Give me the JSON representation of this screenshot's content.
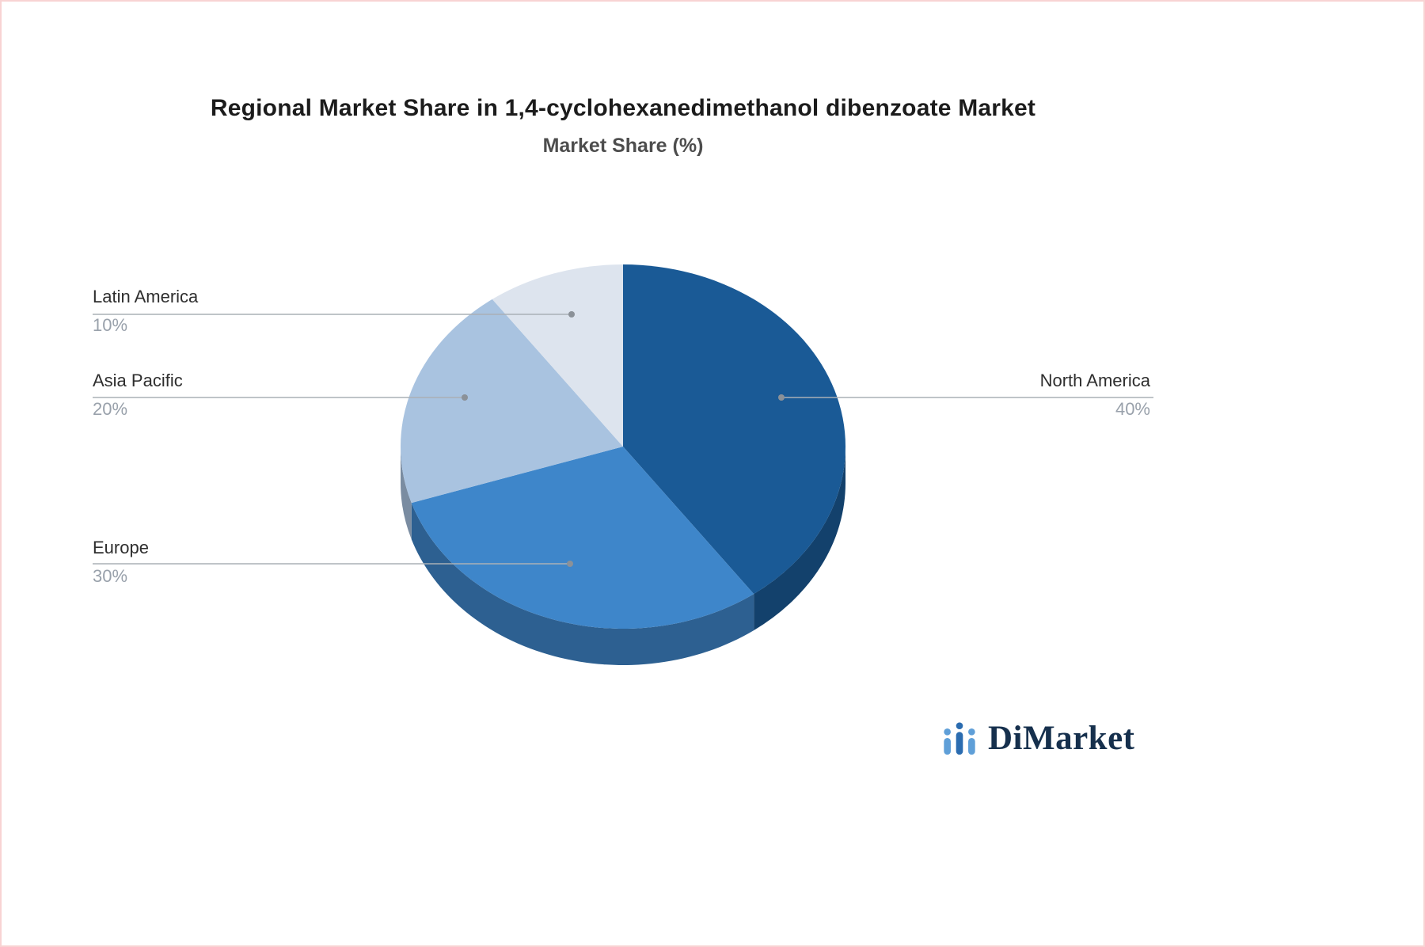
{
  "chart_data": {
    "type": "pie",
    "style": "3d",
    "title": "Regional Market Share in 1,4-cyclohexanedimethanol dibenzoate Market",
    "subtitle": "Market Share (%)",
    "unit": "%",
    "direction": "clockwise",
    "start_angle_deg": 0,
    "legend_position": "outside-callout-labels",
    "labels": [
      "North America",
      "Europe",
      "Asia Pacific",
      "Latin America"
    ],
    "values": [
      40,
      30,
      20,
      10
    ],
    "colors": [
      "#1a5a96",
      "#3e86ca",
      "#a9c3e0",
      "#dde4ee"
    ],
    "slices": [
      {
        "label": "North America",
        "value": 40,
        "display": "40%",
        "color": "#1a5a96"
      },
      {
        "label": "Europe",
        "value": 30,
        "display": "30%",
        "color": "#3e86ca"
      },
      {
        "label": "Asia Pacific",
        "value": 20,
        "display": "20%",
        "color": "#a9c3e0"
      },
      {
        "label": "Latin America",
        "value": 10,
        "display": "10%",
        "color": "#dde4ee"
      }
    ]
  },
  "logo": {
    "text": "DiMarket",
    "icon_colors": {
      "light": "#5f9fd8",
      "dark": "#2b6cb0"
    }
  }
}
